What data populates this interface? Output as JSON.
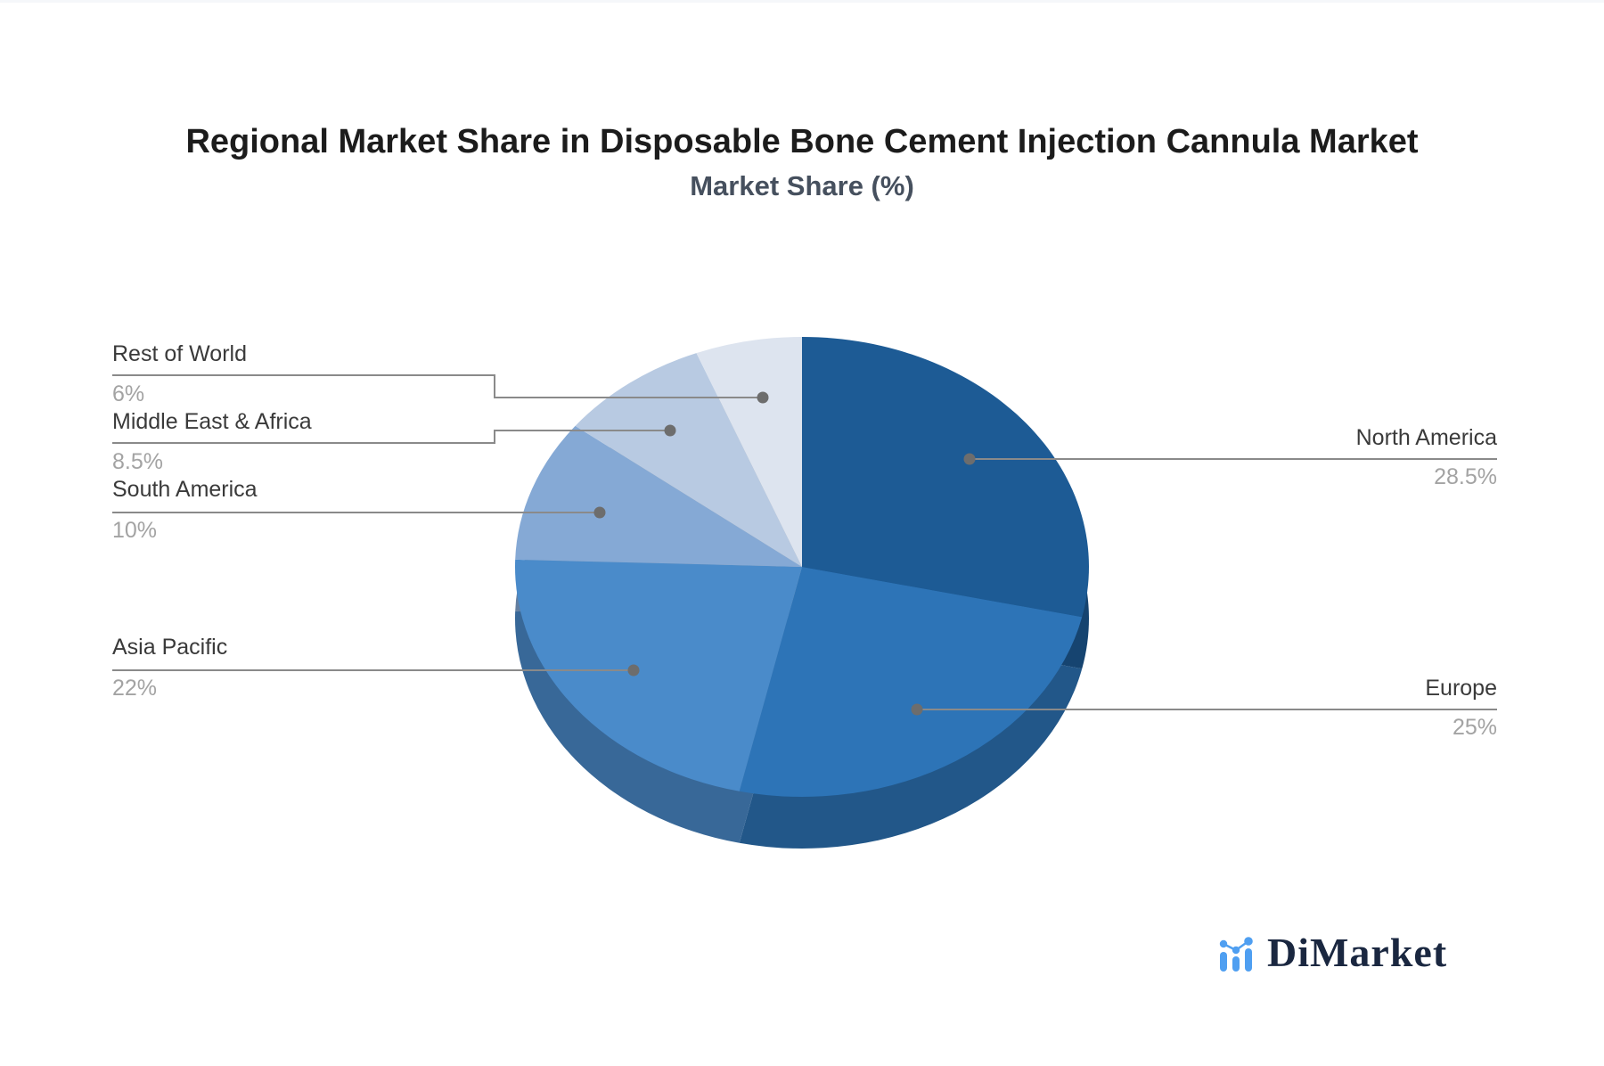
{
  "header": {
    "title": "Regional Market Share in Disposable Bone Cement Injection Cannula Market",
    "subtitle": "Market Share (%)"
  },
  "chart_data": {
    "type": "pie",
    "style": "3d",
    "title": "Regional Market Share in Disposable Bone Cement Injection Cannula Market",
    "subtitle": "Market Share (%)",
    "unit": "%",
    "start_angle_deg": 0,
    "direction": "clockwise",
    "legend": "none",
    "slices": [
      {
        "label": "North America",
        "value": 28.5,
        "display": "28.5%",
        "color": "#1d5b95"
      },
      {
        "label": "Europe",
        "value": 25,
        "display": "25%",
        "color": "#2d74b7"
      },
      {
        "label": "Asia Pacific",
        "value": 22,
        "display": "22%",
        "color": "#4a8bca"
      },
      {
        "label": "South America",
        "value": 10,
        "display": "10%",
        "color": "#85a9d5"
      },
      {
        "label": "Middle East & Africa",
        "value": 8.5,
        "display": "8.5%",
        "color": "#b8cae2"
      },
      {
        "label": "Rest of World",
        "value": 6,
        "display": "6%",
        "color": "#dde4ef"
      }
    ],
    "leader_line_color": "#8a8a8a",
    "leader_dot_color": "#6d6d6d",
    "label_color": "#3a3a3a",
    "value_color": "#a3a3a3"
  },
  "branding": {
    "logo_text": "DiMarket",
    "logo_icon": "bar-line-chart-icon",
    "accent_color": "#4f9ff1",
    "text_color": "#1a2740"
  }
}
